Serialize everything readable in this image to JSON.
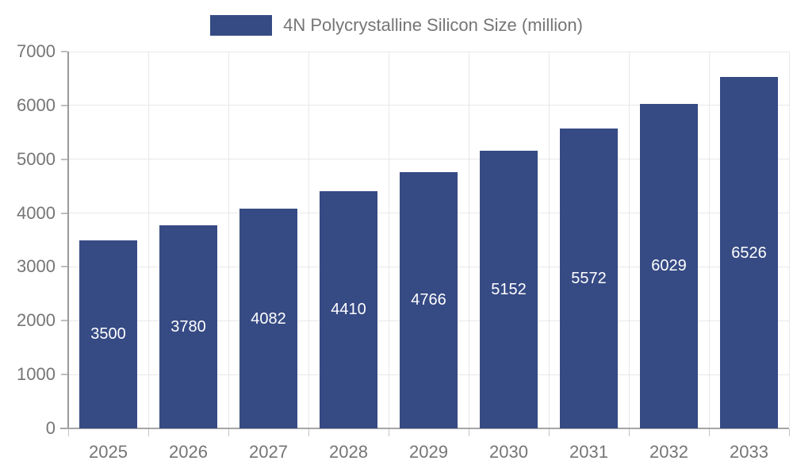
{
  "chart_data": {
    "type": "bar",
    "title": "4N Polycrystalline Silicon Size (million)",
    "categories": [
      "2025",
      "2026",
      "2027",
      "2028",
      "2029",
      "2030",
      "2031",
      "2032",
      "2033"
    ],
    "series": [
      {
        "name": "4N Polycrystalline Silicon Size (million)",
        "values": [
          3500,
          3780,
          4082,
          4410,
          4766,
          5152,
          5572,
          6029,
          6526
        ]
      }
    ],
    "xlabel": "",
    "ylabel": "",
    "ylim": [
      0,
      7000
    ],
    "ytick_interval": 1000,
    "ytick_labels": [
      "0",
      "1000",
      "2000",
      "3000",
      "4000",
      "5000",
      "6000",
      "7000"
    ],
    "grid": true,
    "legend_position": "top",
    "value_labels_position": "inside-center",
    "colors": {
      "bar": "#364A84",
      "value_label": "#ffffff",
      "axis_text": "#757575",
      "gridline": "#e8e8e8",
      "y_axis_line": "#9a9a9a",
      "x_axis_line": "#a6a6a6"
    }
  }
}
